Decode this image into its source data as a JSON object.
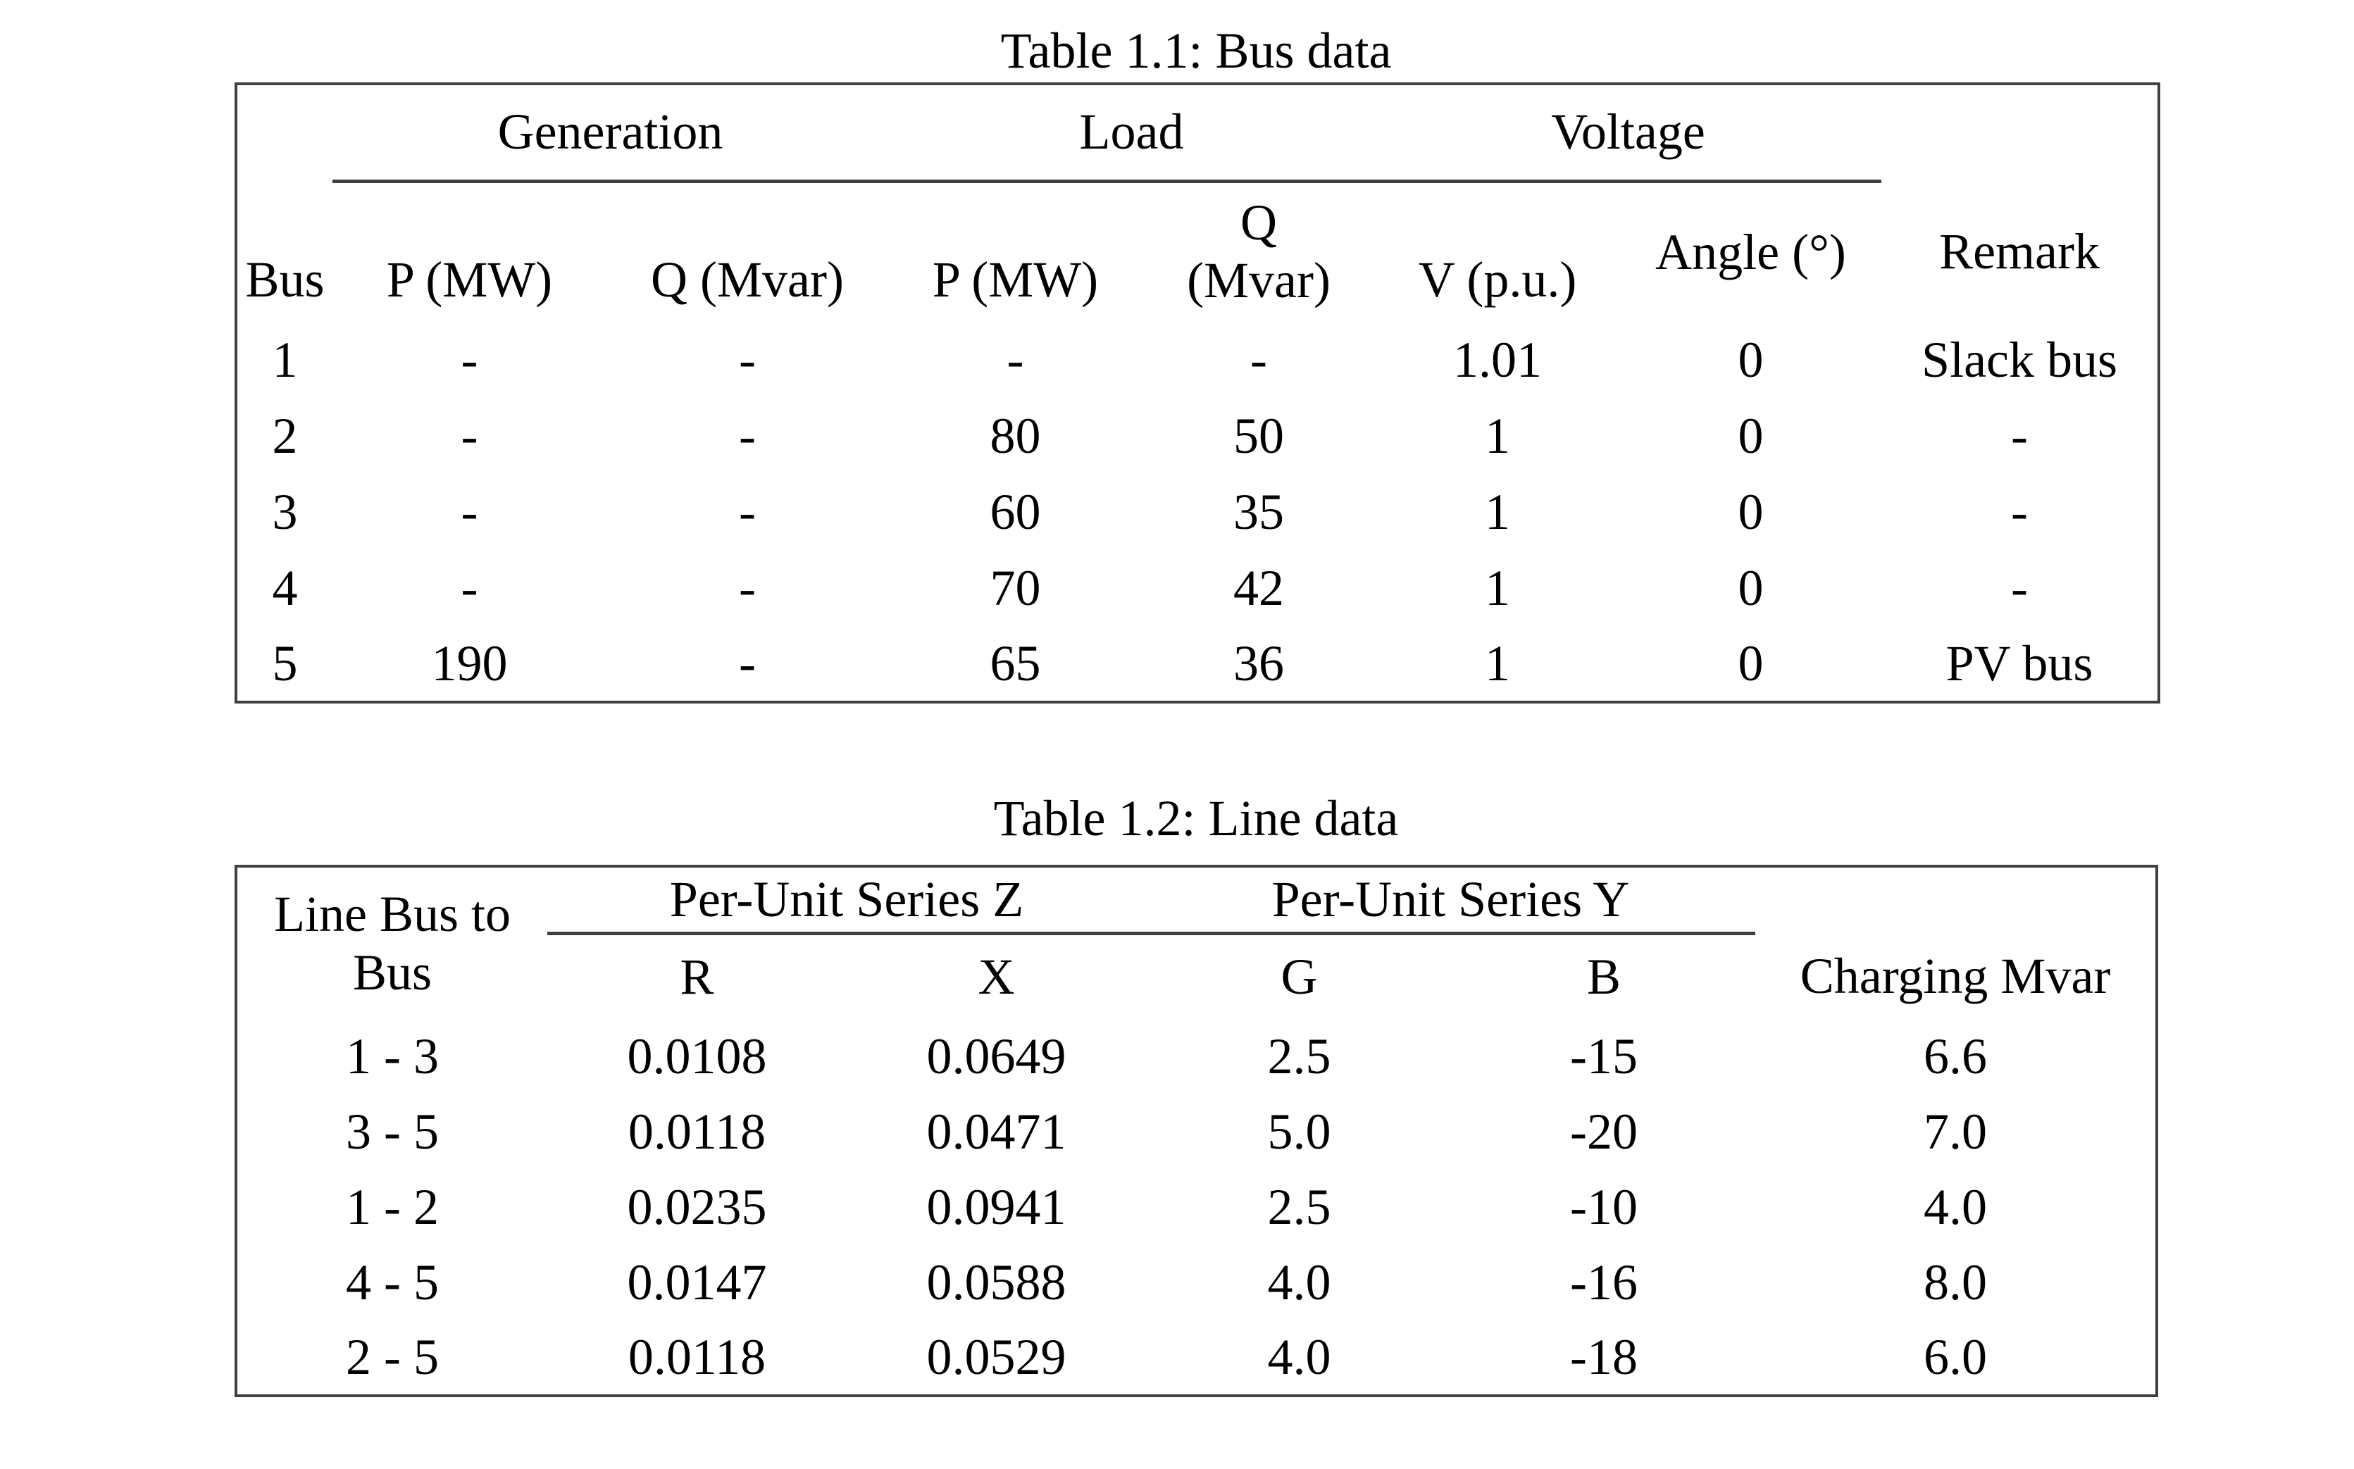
{
  "page": {
    "background_color": "#ffffff",
    "text_color": "#000000",
    "rule_color": "#3f3f3f"
  },
  "table1": {
    "title": "Table 1.1: Bus data",
    "group_headers": {
      "generation": "Generation",
      "load": "Load",
      "voltage": "Voltage"
    },
    "column_headers": {
      "bus": "Bus",
      "gen_p": "P (MW)",
      "gen_q": "Q (Mvar)",
      "load_p": "P (MW)",
      "load_q": "Q\n(Mvar)",
      "v": "V (p.u.)",
      "angle": "Angle (°)",
      "remark": "Remark"
    },
    "rows": [
      [
        "1",
        "-",
        "-",
        "-",
        "-",
        "1.01",
        "0",
        "Slack bus"
      ],
      [
        "2",
        "-",
        "-",
        "80",
        "50",
        "1",
        "0",
        "-"
      ],
      [
        "3",
        "-",
        "-",
        "60",
        "35",
        "1",
        "0",
        "-"
      ],
      [
        "4",
        "-",
        "-",
        "70",
        "42",
        "1",
        "0",
        "-"
      ],
      [
        "5",
        "190",
        "-",
        "65",
        "36",
        "1",
        "0",
        "PV bus"
      ]
    ]
  },
  "table2": {
    "title": "Table 1.2: Line data",
    "group_headers": {
      "series_z": "Per-Unit Series Z",
      "series_y": "Per-Unit Series Y"
    },
    "column_headers": {
      "line": "Line Bus to\nBus",
      "r": "R",
      "x": "X",
      "g": "G",
      "b": "B",
      "charging": "Charging Mvar"
    },
    "rows": [
      [
        "1 - 3",
        "0.0108",
        "0.0649",
        "2.5",
        "-15",
        "6.6"
      ],
      [
        "3 - 5",
        "0.0118",
        "0.0471",
        "5.0",
        "-20",
        "7.0"
      ],
      [
        "1 - 2",
        "0.0235",
        "0.0941",
        "2.5",
        "-10",
        "4.0"
      ],
      [
        "4 - 5",
        "0.0147",
        "0.0588",
        "4.0",
        "-16",
        "8.0"
      ],
      [
        "2 - 5",
        "0.0118",
        "0.0529",
        "4.0",
        "-18",
        "6.0"
      ]
    ]
  }
}
